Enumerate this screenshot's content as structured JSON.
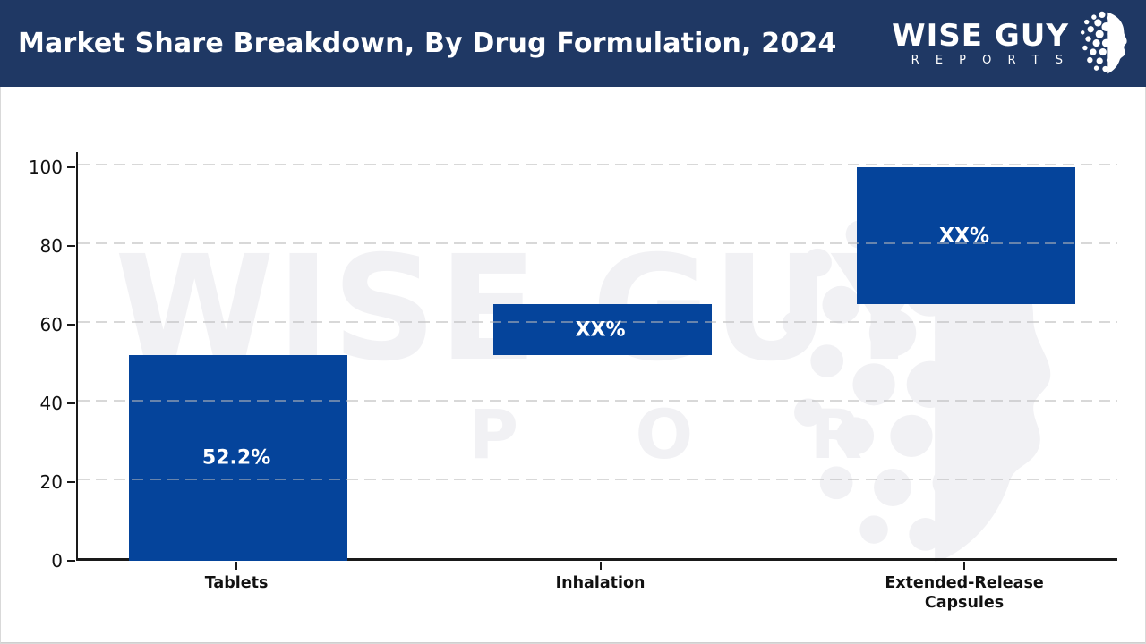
{
  "header": {
    "title": "Market Share Breakdown, By Drug Formulation, 2024",
    "logo": {
      "name": "WISE GUY",
      "tagline": "R E P O R T S"
    }
  },
  "watermark": {
    "name": "WISE GUY",
    "tagline": "R E P O R T S"
  },
  "chart_data": {
    "type": "bar",
    "subtype": "waterfall",
    "title": "Market Share Breakdown, By Drug Formulation, 2024",
    "categories": [
      "Tablets",
      "Inhalation",
      "Extended-Release Capsules"
    ],
    "segments": [
      {
        "category": "Tablets",
        "start": 0,
        "end": 52.2,
        "label": "52.2%"
      },
      {
        "category": "Inhalation",
        "start": 52.2,
        "end": 65.2,
        "label": "XX%"
      },
      {
        "category": "Extended-Release Capsules",
        "start": 65.2,
        "end": 100.0,
        "label": "XX%"
      }
    ],
    "segment_sizes_pct": [
      52.2,
      13.0,
      34.8
    ],
    "xlabel": "",
    "ylabel": "",
    "ylim": [
      0,
      100
    ],
    "yticks": [
      0,
      20,
      40,
      60,
      80,
      100
    ],
    "grid": "horizontal-dashed",
    "legend": "none",
    "bar_color": "#05449b",
    "bar_label_color": "#ffffff",
    "axis_color": "#1a1a1a",
    "gridline_color": "#bbbbbb",
    "header_bg": "#1f3864",
    "watermark_color": "#f1f1f4"
  }
}
